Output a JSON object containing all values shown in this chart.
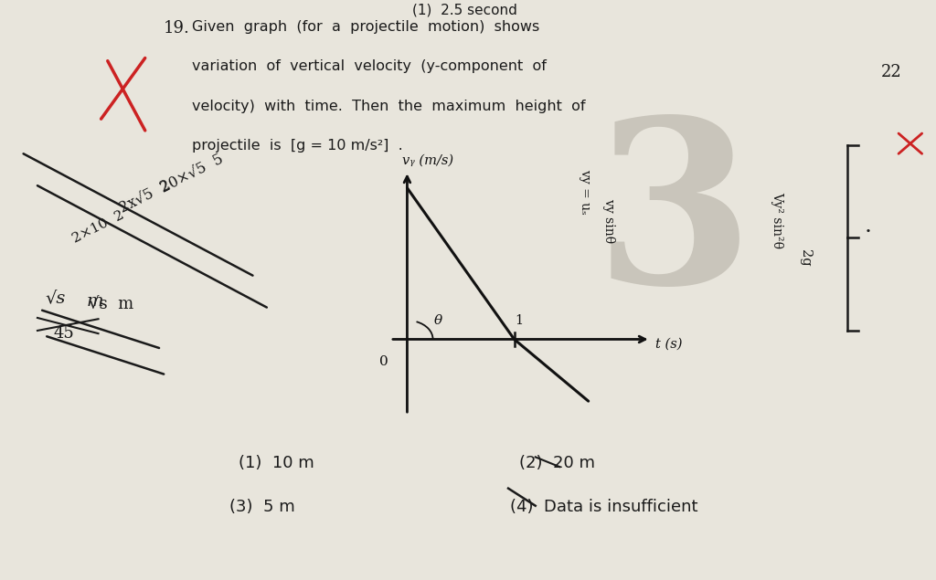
{
  "background_color": "#c8c5bc",
  "paper_color": "#e8e5dc",
  "text_color": "#1a1a1a",
  "x_mark_color": "#cc2222",
  "graph_color": "#111111",
  "question_number": "19.",
  "question_lines": [
    "Given  graph  (for  a  projectile  motion)  shows",
    "variation  of  vertical  velocity  (y-component  of",
    "velocity)  with  time.  Then  the  maximum  height  of",
    "projectile  is  [g = 10 m/s²]  ."
  ],
  "top_right_text": "(1)  2.5 second",
  "number_22": "22",
  "graph_ylabel": "vᵧ (m/s)",
  "graph_xlabel": "t (s)",
  "theta_label": "θ",
  "tick_label": "1",
  "origin_label": "0",
  "options": [
    "(1)  10 m",
    "(3)  5 m",
    "(2)  20 m",
    "(4)  Data is insufficient"
  ],
  "gx": 0.435,
  "gy": 0.415,
  "gw": 0.22,
  "gh": 0.29,
  "gd": 0.13
}
